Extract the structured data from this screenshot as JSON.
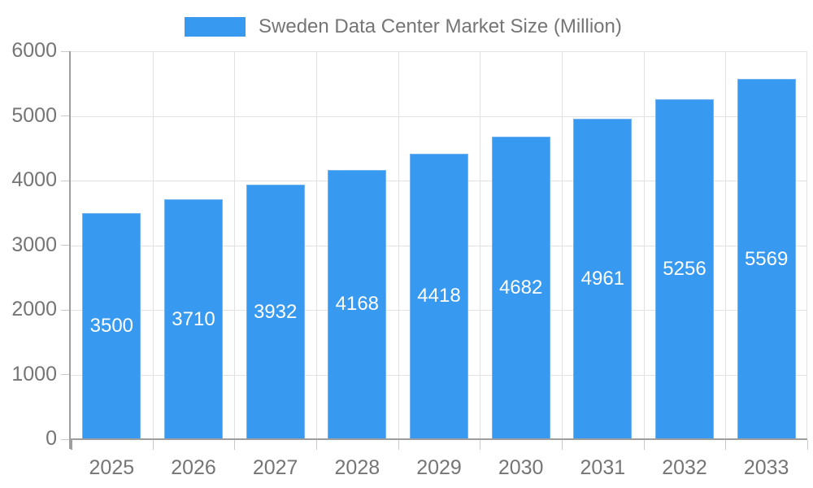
{
  "chart_data": {
    "type": "bar",
    "title": "Sweden Data Center Market Size (Million)",
    "legend": {
      "label": "Sweden Data Center Market Size (Million)",
      "position": "top"
    },
    "categories": [
      "2025",
      "2026",
      "2027",
      "2028",
      "2029",
      "2030",
      "2031",
      "2032",
      "2033"
    ],
    "values": [
      3500,
      3710,
      3932,
      4168,
      4418,
      4682,
      4961,
      5256,
      5569
    ],
    "xlabel": "",
    "ylabel": "",
    "ylim": [
      0,
      6000
    ],
    "ytick_step": 1000,
    "ytick_labels": [
      "0",
      "1000",
      "2000",
      "3000",
      "4000",
      "5000",
      "6000"
    ],
    "grid": true,
    "value_label_position": "inside-center",
    "colors": {
      "bar": "#3899f0",
      "bar_border": "#74b4f2",
      "value_label": "#ffffff",
      "text": "#757575",
      "grid_line": "#e2e2e2",
      "axis_line": "#9e9e9e",
      "tick": "#c9c9c9",
      "background": "#ffffff"
    }
  }
}
